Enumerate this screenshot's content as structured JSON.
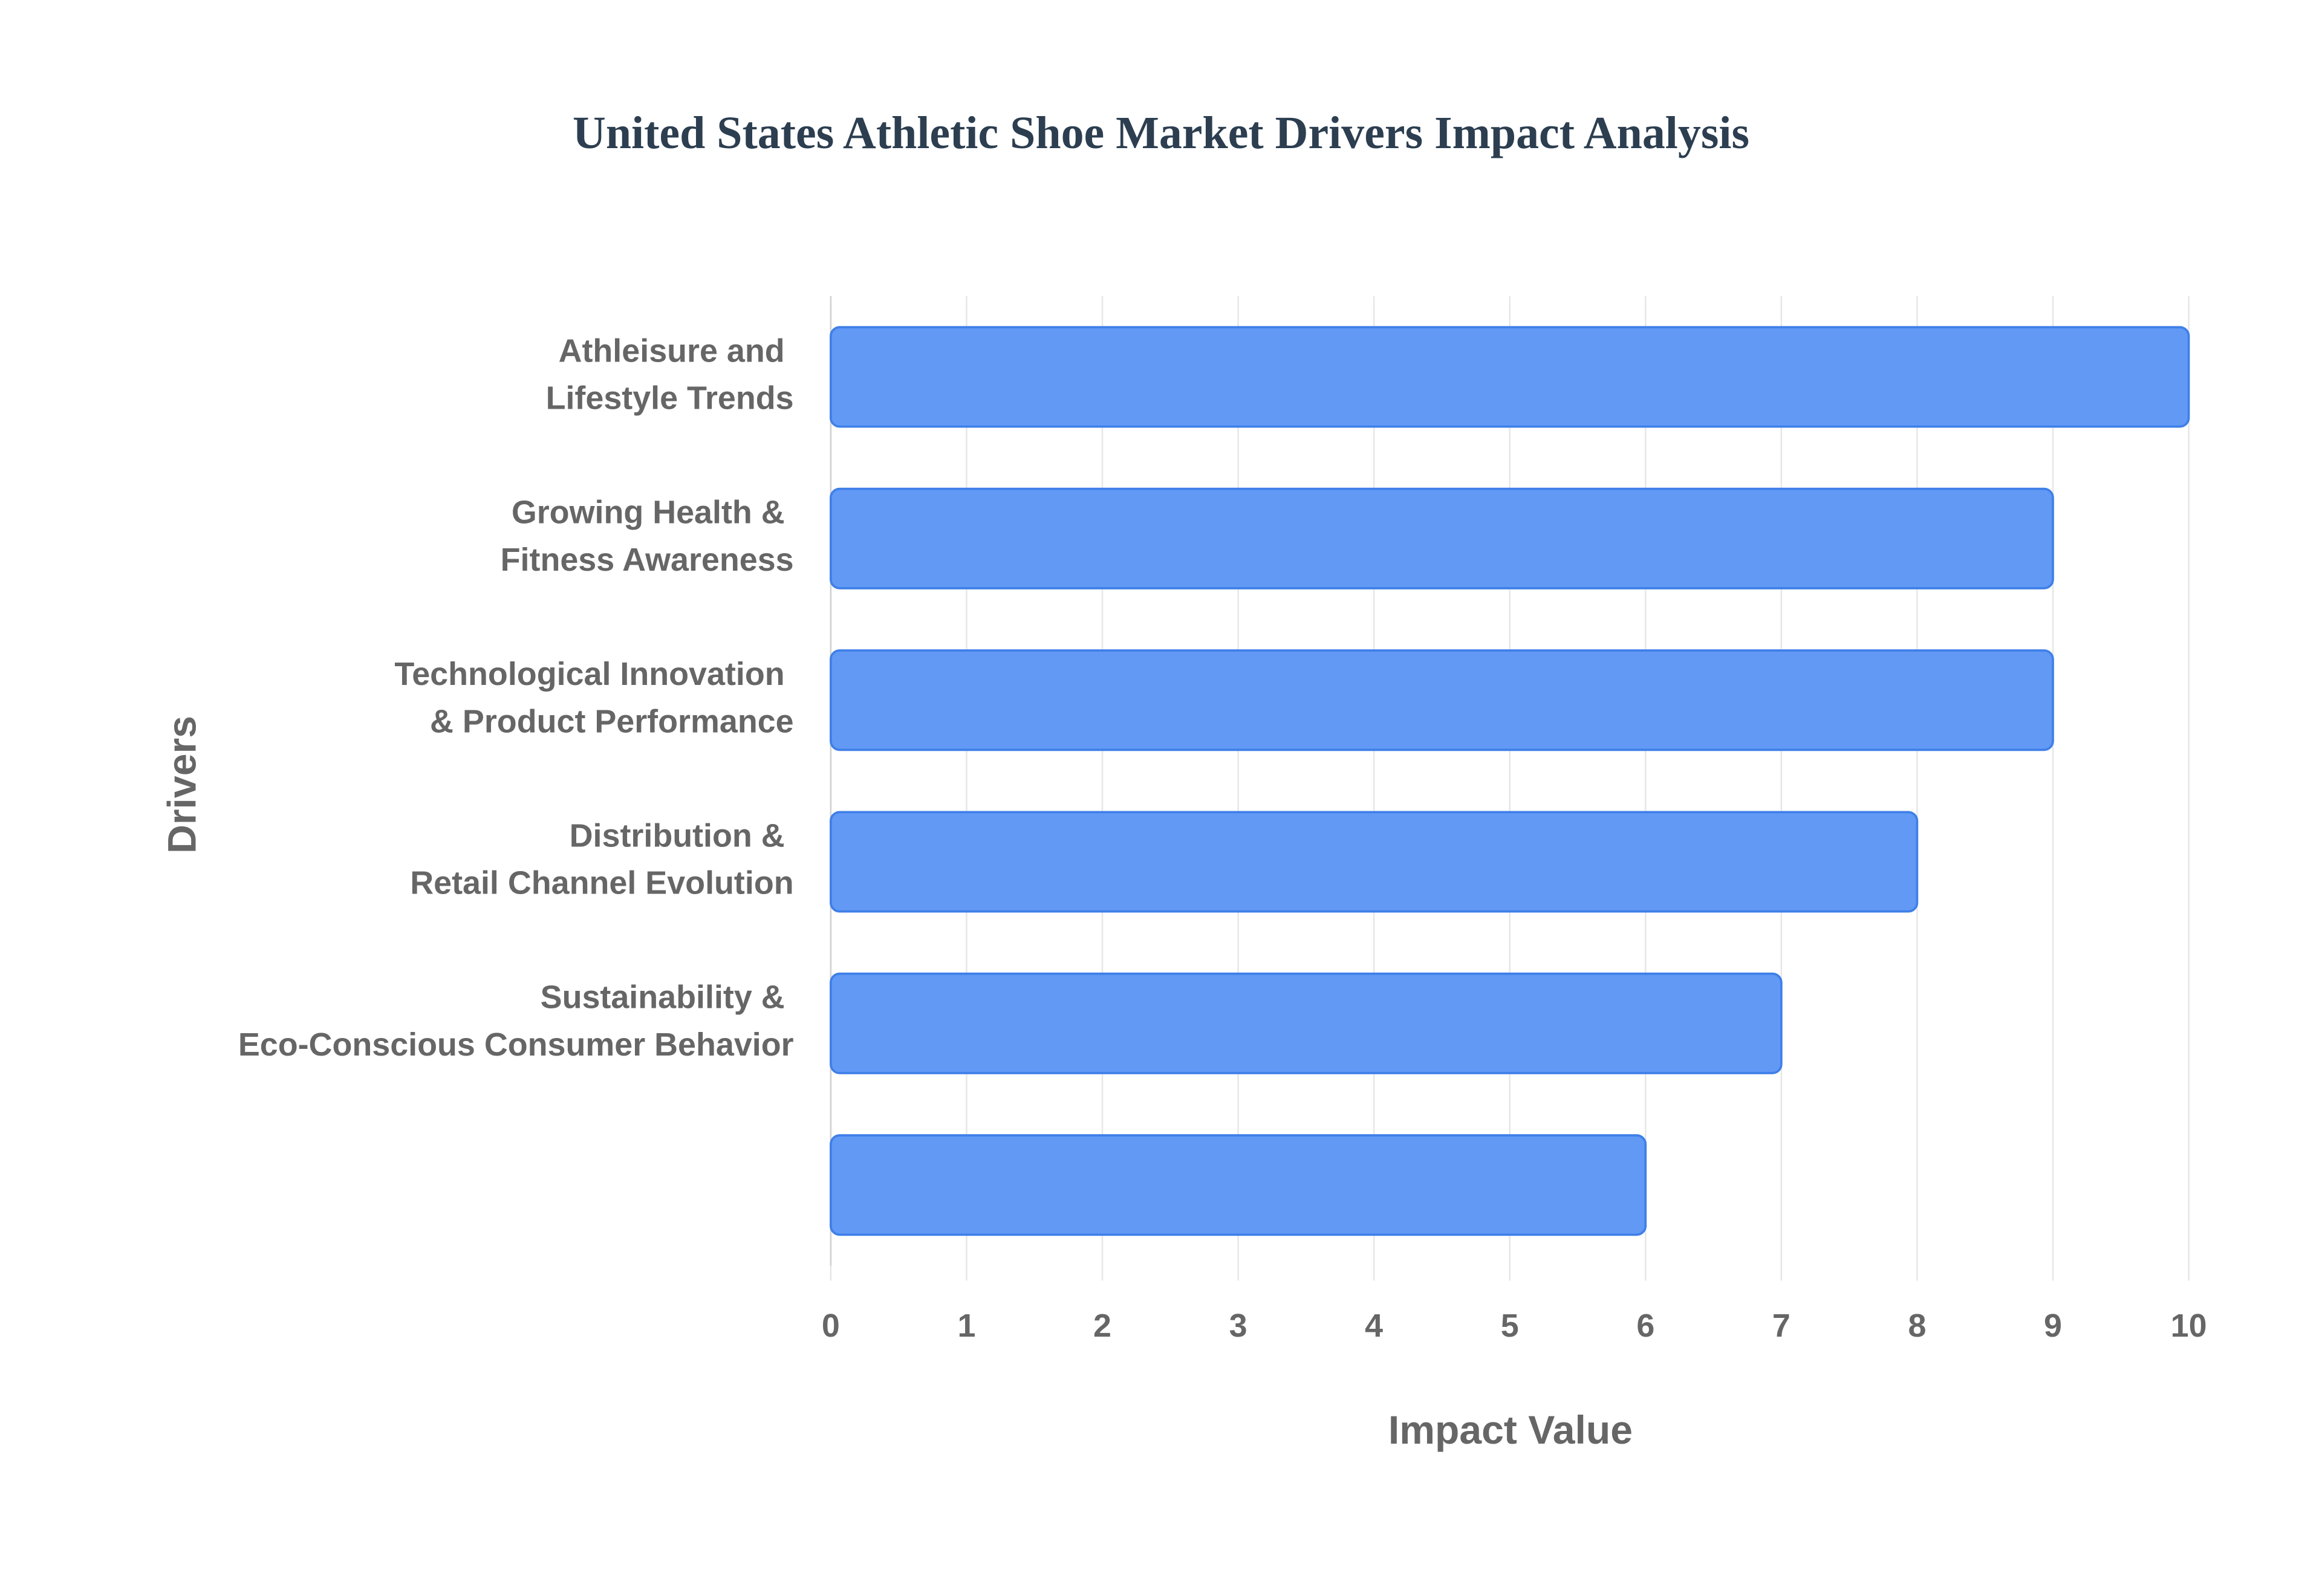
{
  "chart_data": {
    "type": "bar",
    "orientation": "horizontal",
    "title": "United States Athletic Shoe Market Drivers Impact Analysis",
    "x_label": "Impact Value",
    "y_label": "Drivers",
    "categories": [
      "Athleisure and Lifestyle Trends",
      "Growing Health & Fitness Awareness",
      "Technological Innovation & Product Performance",
      "Distribution & Retail Channel Evolution",
      "Sustainability & Eco-Conscious Consumer Behavior",
      null
    ],
    "values": [
      10,
      9,
      9,
      8,
      7,
      6
    ],
    "color": "#6199f5",
    "xlim": [
      0,
      10
    ],
    "xticks": [
      0,
      1,
      2,
      3,
      4,
      5,
      6,
      7,
      8,
      9,
      10
    ],
    "grid": true
  }
}
